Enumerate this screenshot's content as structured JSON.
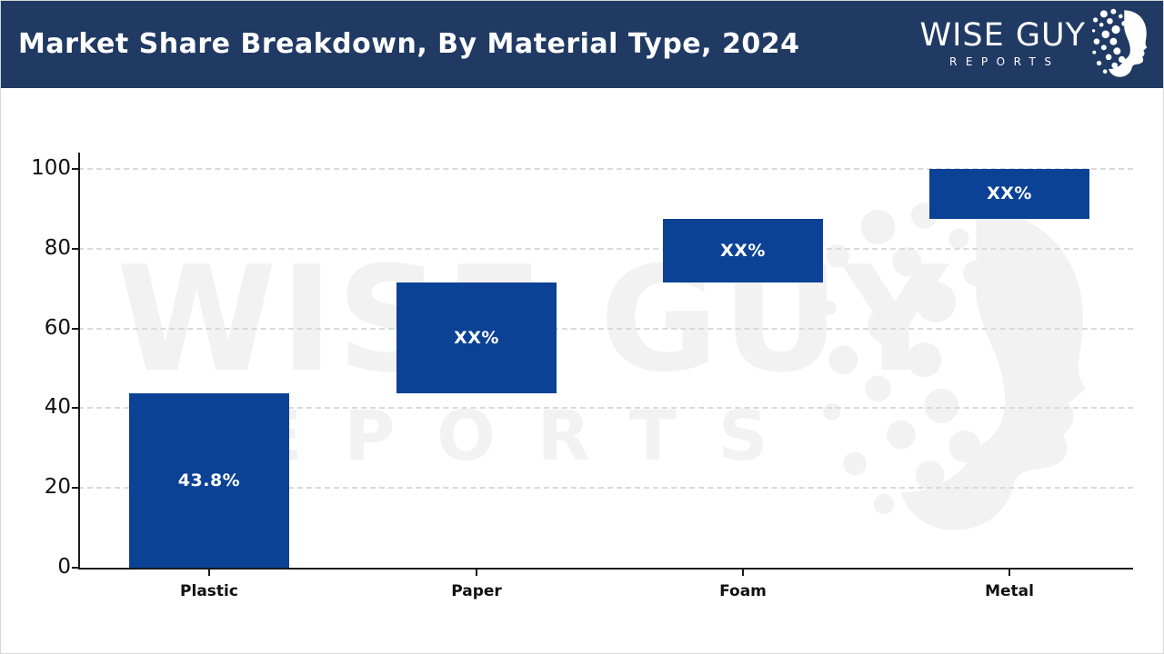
{
  "header": {
    "title": "Market Share Breakdown, By Material Type, 2024",
    "logo": {
      "line1": "WISE GUY",
      "line2": "REPORTS"
    }
  },
  "watermark": {
    "line1": "WISE GUY",
    "line2": "REPORTS"
  },
  "colors": {
    "header_bg": "#203a64",
    "bar": "#0b4295",
    "bar_label": "#ffffff",
    "grid": "#dadada",
    "axis": "#1a1a1a",
    "watermark": "#f2f2f2"
  },
  "chart_data": {
    "type": "bar",
    "subtype": "waterfall",
    "title": "Market Share Breakdown, By Material Type, 2024",
    "categories": [
      "Plastic",
      "Paper",
      "Foam",
      "Metal"
    ],
    "segments": [
      {
        "category": "Plastic",
        "start": 0,
        "end": 43.8,
        "label": "43.8%"
      },
      {
        "category": "Paper",
        "start": 43.8,
        "end": 71.6,
        "label": "XX%"
      },
      {
        "category": "Foam",
        "start": 71.6,
        "end": 87.5,
        "label": "XX%"
      },
      {
        "category": "Metal",
        "start": 87.5,
        "end": 100,
        "label": "XX%"
      }
    ],
    "xlabel": "",
    "ylabel": "",
    "y_axis": {
      "ticks": [
        0,
        20,
        40,
        60,
        80,
        100
      ],
      "ylim": [
        0,
        104
      ]
    },
    "grid": "horizontal-dashed",
    "legend": "none"
  }
}
